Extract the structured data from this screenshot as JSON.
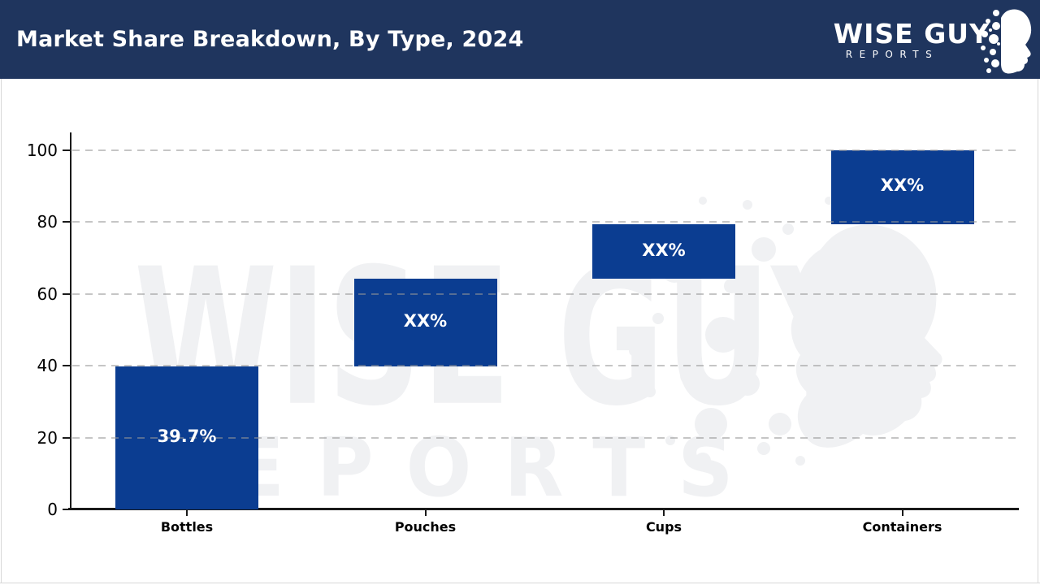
{
  "colors": {
    "header_bg": "#1f355e",
    "header_text": "#ffffff",
    "bar_blue": "#0b3d91",
    "bar_label_white": "#ffffff",
    "axis_black": "#1a1a1a",
    "tick_text": "#000000",
    "watermark_gray": "#f0f1f3",
    "grid_gray": "#c9c9c9"
  },
  "header": {
    "title": "Market Share Breakdown, By Type, 2024",
    "logo": {
      "line1": "WISE GUY",
      "line2": "REPORTS",
      "face_icon": "dotted-head-profile"
    }
  },
  "watermark": {
    "line1": "WISE GUY",
    "line2": "REPORTS",
    "face": "dotted-head-profile"
  },
  "chart_data": {
    "type": "bar",
    "subtype": "waterfall",
    "title": "Market Share Breakdown, By Type, 2024",
    "categories": [
      "Bottles",
      "Pouches",
      "Cups",
      "Containers"
    ],
    "segments": [
      {
        "category": "Bottles",
        "start": 0,
        "end": 39.7,
        "value": 39.7,
        "label": "39.7%"
      },
      {
        "category": "Pouches",
        "start": 39.7,
        "end": 64.2,
        "value": 24.5,
        "label": "XX%"
      },
      {
        "category": "Cups",
        "start": 64.2,
        "end": 79.3,
        "value": 15.1,
        "label": "XX%"
      },
      {
        "category": "Containers",
        "start": 79.3,
        "end": 100,
        "value": 20.7,
        "label": "XX%"
      }
    ],
    "yticks": [
      0,
      20,
      40,
      60,
      80,
      100
    ],
    "ylim": [
      0,
      105
    ],
    "xlabel": "",
    "ylabel": "",
    "legend": "none",
    "grid": "horizontal-dashed",
    "bar_color": "#0b3d91",
    "bar_label_color": "#ffffff"
  }
}
